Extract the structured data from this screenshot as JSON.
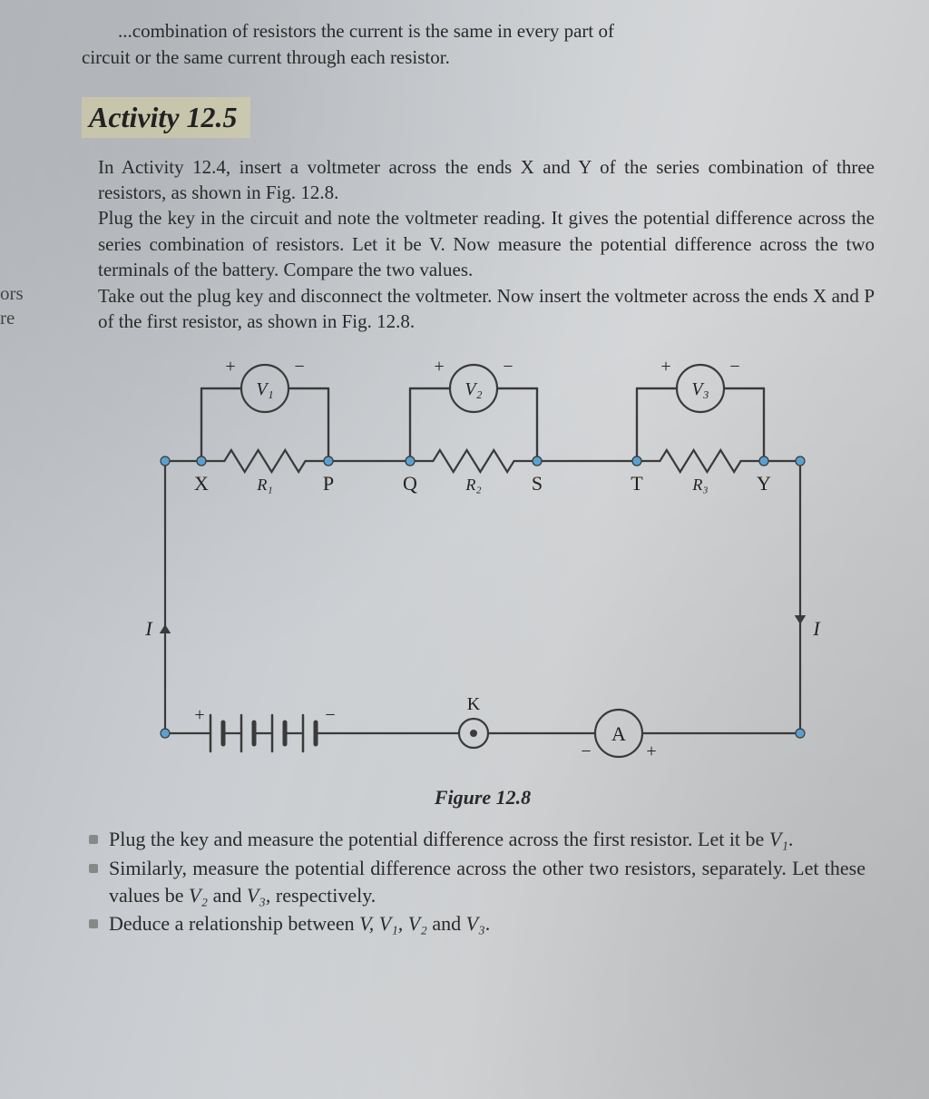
{
  "top": {
    "line1": "...combination of resistors the current is the same in every part of",
    "line2": "circuit or the same current through each resistor."
  },
  "activity": {
    "title": "Activity 12.5",
    "p1": "In Activity 12.4, insert a voltmeter across the ends X and Y of the series combination of three resistors, as shown in Fig. 12.8.",
    "p2": "Plug the key in the circuit and note the voltmeter reading. It gives the potential difference across the series combination of resistors. Let it be V. Now measure the potential difference across the two terminals of the battery. Compare the two values.",
    "p3": "Take out the plug key and disconnect the voltmeter. Now insert the voltmeter across the ends X and P of the first resistor, as shown in Fig. 12.8."
  },
  "margin": {
    "l1": "ors",
    "l2": "re"
  },
  "figure": {
    "caption": "Figure 12.8",
    "labels": {
      "V1": "V₁",
      "V2": "V₂",
      "V3": "V₃",
      "X": "X",
      "P": "P",
      "Q": "Q",
      "S": "S",
      "T": "T",
      "Y": "Y",
      "R1": "R₁",
      "R2": "R₂",
      "R3": "R₃",
      "K": "K",
      "A": "A",
      "I_left": "I",
      "I_right": "I",
      "plus": "+",
      "minus": "−"
    },
    "style": {
      "stroke": "#3a3a3a",
      "stroke_width": 2.2,
      "node_fill": "#5aa0d0",
      "text_color": "#222",
      "font_size": 22,
      "font_size_small": 18,
      "font_family": "Georgia, serif"
    }
  },
  "bottom": {
    "b1_a": "Plug the key and measure the potential difference across the first resistor. Let it be ",
    "b1_v": "V₁",
    "b1_b": ".",
    "b2_a": "Similarly, measure the potential difference across the other two resistors, separately. Let these values be ",
    "b2_v2": "V₂",
    "b2_mid": " and ",
    "b2_v3": "V₃",
    "b2_b": ", respectively.",
    "b3_a": "Deduce a relationship between ",
    "b3_v": "V, V₁, V₂",
    "b3_mid": " and ",
    "b3_v3": "V₃",
    "b3_b": "."
  }
}
